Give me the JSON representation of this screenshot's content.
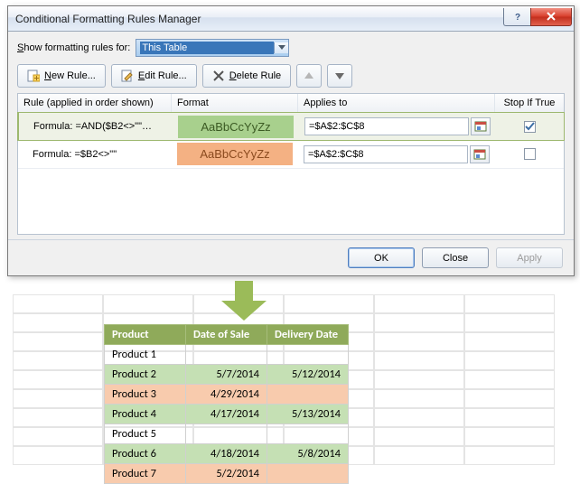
{
  "dialog": {
    "title": "Conditional Formatting Rules Manager",
    "show_label_pre": "S",
    "show_label_rest": "how formatting rules for:",
    "scope_value": "This Table",
    "buttons": {
      "new_pre": "N",
      "new_rest": "ew Rule...",
      "edit_pre": "E",
      "edit_rest": "dit Rule...",
      "delete_pre": "D",
      "delete_rest": "elete Rule"
    },
    "headers": {
      "rule": "Rule (applied in order shown)",
      "format": "Format",
      "applies": "Applies to",
      "stop": "Stop If True"
    },
    "rules": [
      {
        "formula": "Formula: =AND($B2<>\"\"…",
        "sample_text": "AaBbCcYyZz",
        "sample_bg": "#a8d08d",
        "sample_fg": "#3b5a23",
        "applies": "=$A$2:$C$8",
        "stop": true,
        "selected": true
      },
      {
        "formula": "Formula: =$B2<>\"\"",
        "sample_text": "AaBbCcYyZz",
        "sample_bg": "#f4b183",
        "sample_fg": "#8a4a1e",
        "applies": "=$A$2:$C$8",
        "stop": false,
        "selected": false
      }
    ],
    "footer": {
      "ok": "OK",
      "close": "Close",
      "apply": "Apply"
    }
  },
  "arrow_color": "#8faa4a",
  "sheet": {
    "header_bg": "#8faa5a",
    "green_bg": "#c5e0b4",
    "orange_bg": "#f8cbad",
    "columns": [
      "Product",
      "Date of Sale",
      "Delivery Date"
    ],
    "rows": [
      {
        "cells": [
          "Product 1",
          "",
          ""
        ],
        "fill": "none"
      },
      {
        "cells": [
          "Product 2",
          "5/7/2014",
          "5/12/2014"
        ],
        "fill": "green"
      },
      {
        "cells": [
          "Product 3",
          "4/29/2014",
          ""
        ],
        "fill": "orange"
      },
      {
        "cells": [
          "Product 4",
          "4/17/2014",
          "5/13/2014"
        ],
        "fill": "green"
      },
      {
        "cells": [
          "Product 5",
          "",
          ""
        ],
        "fill": "none"
      },
      {
        "cells": [
          "Product 6",
          "4/18/2014",
          "5/8/2014"
        ],
        "fill": "green"
      },
      {
        "cells": [
          "Product 7",
          "5/2/2014",
          ""
        ],
        "fill": "orange"
      }
    ]
  }
}
